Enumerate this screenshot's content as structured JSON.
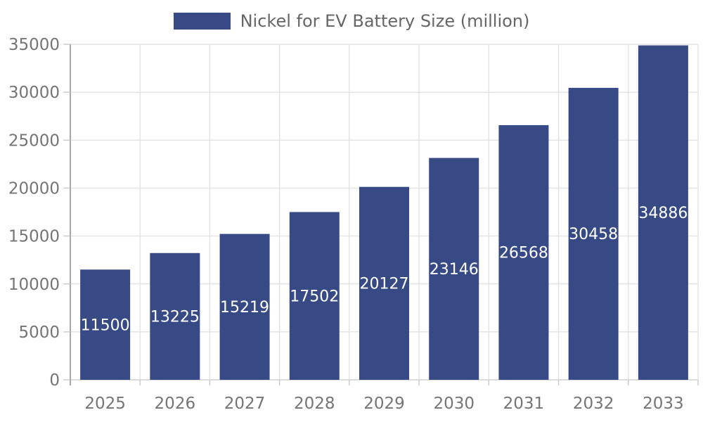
{
  "chart_data": {
    "type": "bar",
    "title": "Nickel for EV Battery Size (million)",
    "legend": [
      "Nickel for EV Battery Size (million)"
    ],
    "legend_position": "top-center",
    "categories": [
      "2025",
      "2026",
      "2027",
      "2028",
      "2029",
      "2030",
      "2031",
      "2032",
      "2033"
    ],
    "values": [
      11500,
      13225,
      15219,
      17502,
      20127,
      23146,
      26568,
      30458,
      34886
    ],
    "xlabel": "",
    "ylabel": "",
    "ylim": [
      0,
      35000
    ],
    "yticks": [
      0,
      5000,
      10000,
      15000,
      20000,
      25000,
      30000,
      35000
    ],
    "grid": true,
    "value_label_position": "inside-center",
    "colors": {
      "bar": "#374A85",
      "grid": "#E3E3E6",
      "axis": "#A6A6A6",
      "tick": "#C9C9C9",
      "tick_label": "#757575",
      "value_label": "#FFFFFF",
      "legend_text": "#666666",
      "background": "#FFFFFF"
    }
  }
}
